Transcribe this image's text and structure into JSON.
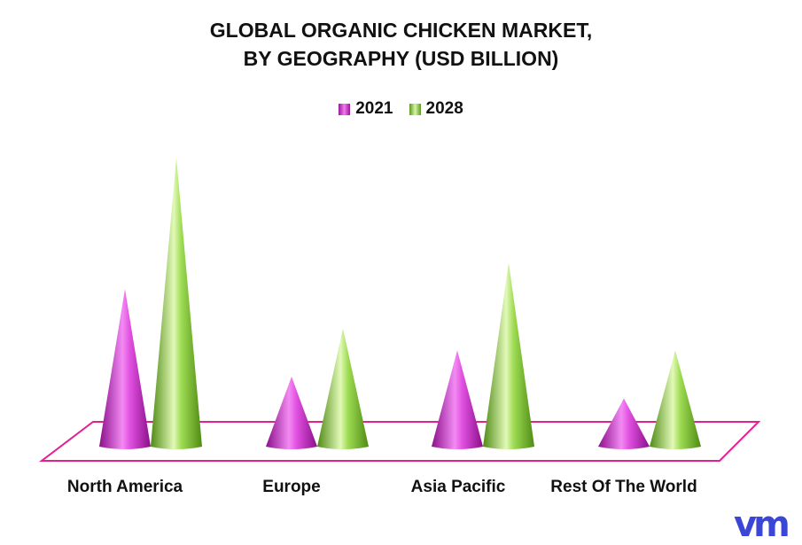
{
  "chart_data": {
    "type": "bar",
    "title_lines": [
      "GLOBAL ORGANIC CHICKEN MARKET,",
      "BY GEOGRAPHY (USD BILLION)"
    ],
    "categories": [
      "North America",
      "Europe",
      "Asia Pacific",
      "Rest Of The World"
    ],
    "series": [
      {
        "name": "2021",
        "color": "#d42ed4",
        "values": [
          1.8,
          0.8,
          1.1,
          0.55
        ]
      },
      {
        "name": "2028",
        "color": "#8bd13a",
        "values": [
          3.3,
          1.35,
          2.1,
          1.1
        ]
      }
    ],
    "ylim": [
      0,
      3.3
    ],
    "legend_position": "top-center",
    "grid": false
  },
  "logo": {
    "text": "vm"
  }
}
